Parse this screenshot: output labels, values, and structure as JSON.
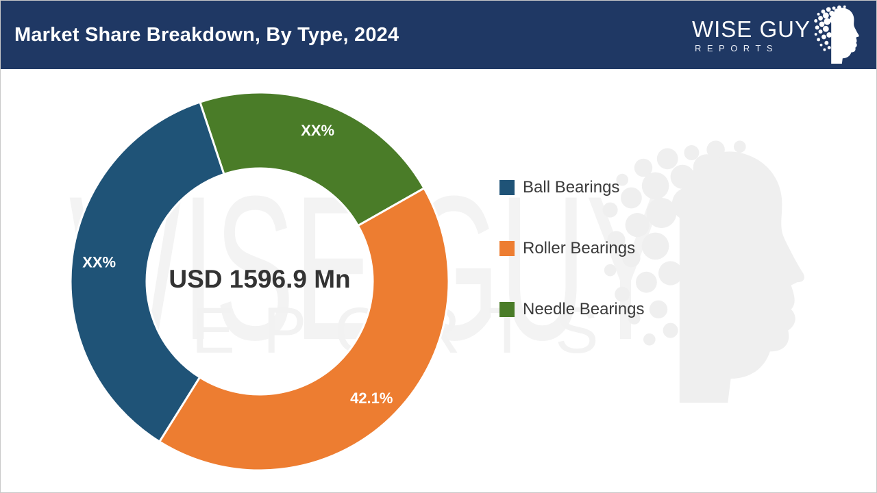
{
  "header": {
    "title": "Market Share Breakdown, By Type, 2024",
    "logo": {
      "line1": "WISE GUY",
      "line2": "REPORTS"
    }
  },
  "watermark": {
    "line1": "WISE GUY",
    "line2": "REPORTS"
  },
  "chart_data": {
    "type": "donut",
    "title": "Market Share Breakdown, By Type, 2024",
    "center_label": "USD 1596.9 Mn",
    "start_angle_from_top_deg": -18.4,
    "clockwise": true,
    "segments": [
      {
        "name": "Needle Bearings",
        "label": "XX%",
        "value_pct": 21.9,
        "color": "#4a7c28"
      },
      {
        "name": "Roller Bearings",
        "label": "42.1%",
        "value_pct": 42.1,
        "color": "#ed7d31"
      },
      {
        "name": "Ball Bearings",
        "label": "XX%",
        "value_pct": 36.0,
        "color": "#1f5377"
      }
    ],
    "legend": [
      {
        "label": "Ball Bearings",
        "color": "#1f5377"
      },
      {
        "label": "Roller Bearings",
        "color": "#ed7d31"
      },
      {
        "label": "Needle Bearings",
        "color": "#4a7c28"
      }
    ],
    "legend_position": "right"
  },
  "colors": {
    "header_bg": "#1f3864",
    "blue": "#1f5377",
    "orange": "#ed7d31",
    "green": "#4a7c28",
    "watermark": "#f3f3f3"
  }
}
